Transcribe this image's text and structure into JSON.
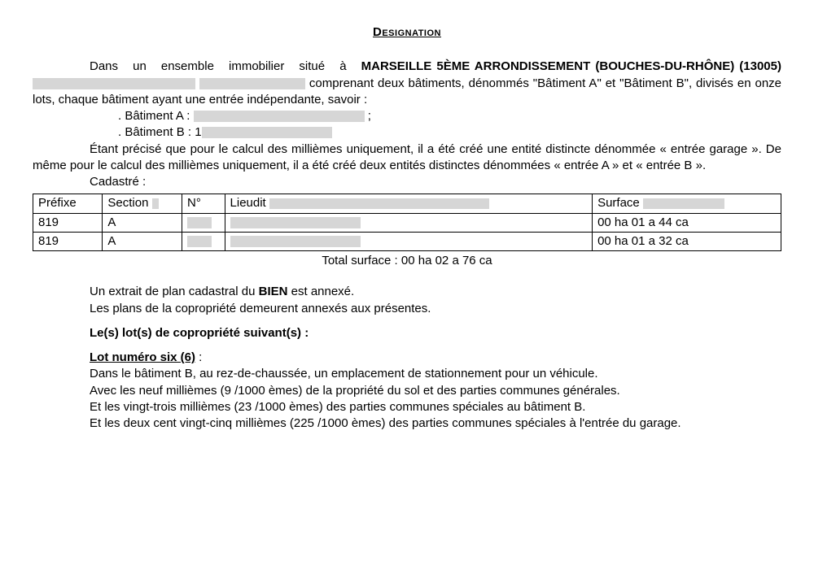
{
  "title": "Designation",
  "intro": {
    "line1_prefix": "Dans   un   ensemble   immobilier   situé   à   ",
    "location_bold": "MARSEILLE   5ÈME ARRONDISSEMENT   (BOUCHES-DU-RHÔNE)   (13005)",
    "redact1_w": 200,
    "line2_redact_w": 130,
    "line2_rest": " comprenant deux bâtiments, dénommés \"Bâtiment A\" et \"Bâtiment B\", divisés en onze lots, chaque bâtiment ayant une entrée indépendante, savoir :"
  },
  "batA": {
    "label": ". Bâtiment A : ",
    "redact_w": 210,
    "suffix": " ;"
  },
  "batB": {
    "label": ". Bâtiment B : ",
    "prefix_text": "1",
    "redact_w": 160,
    "suffix": ""
  },
  "precision": "Étant précisé que pour le calcul des millièmes uniquement, il a été créé une entité distincte dénommée « entrée garage ». De même pour le calcul des millièmes uniquement, il a été créé deux entités distinctes dénommées « entrée A » et « entrée B ».",
  "cadastre_label": "Cadastré :",
  "table": {
    "headers": {
      "prefixe": "Préfixe",
      "section": "Section",
      "no": "N°",
      "lieudit": "Lieudit",
      "surface": "Surface"
    },
    "col_widths": {
      "prefixe": 70,
      "section": 80,
      "no": 40,
      "lieudit": 370,
      "surface": 190
    },
    "rows": [
      {
        "prefixe": "819",
        "section": "A",
        "no_redact_w": 30,
        "lieudit_redact_w": 160,
        "surface": "00 ha 01 a 44 ca"
      },
      {
        "prefixe": "819",
        "section": "A",
        "no_redact_w": 30,
        "lieudit_redact_w": 160,
        "surface": "00 ha 01 a 32 ca"
      }
    ],
    "total": "Total surface : 00 ha 02 a 76 ca"
  },
  "annex1": {
    "pre": "Un extrait de plan cadastral du ",
    "bold": "BIEN",
    "post": " est annexé."
  },
  "annex2": "Les  plans de la copropriété demeurent annexés aux présentes.",
  "lots_title": "Le(s) lot(s) de copropriété suivant(s) :",
  "lot6": {
    "title": "Lot numéro six  (6)",
    "title_suffix": " :",
    "p1": "Dans le bâtiment B, au rez-de-chaussée, un emplacement de stationnement pour un véhicule.",
    "p2": "Avec les neuf millièmes (9 /1000 èmes) de la propriété du sol et des parties communes générales.",
    "p3": "Et les vingt-trois millièmes (23 /1000 èmes) des parties communes spéciales au bâtiment B.",
    "p4": "Et les deux cent vingt-cinq millièmes (225 /1000 èmes) des parties communes spéciales à l'entrée du garage."
  }
}
